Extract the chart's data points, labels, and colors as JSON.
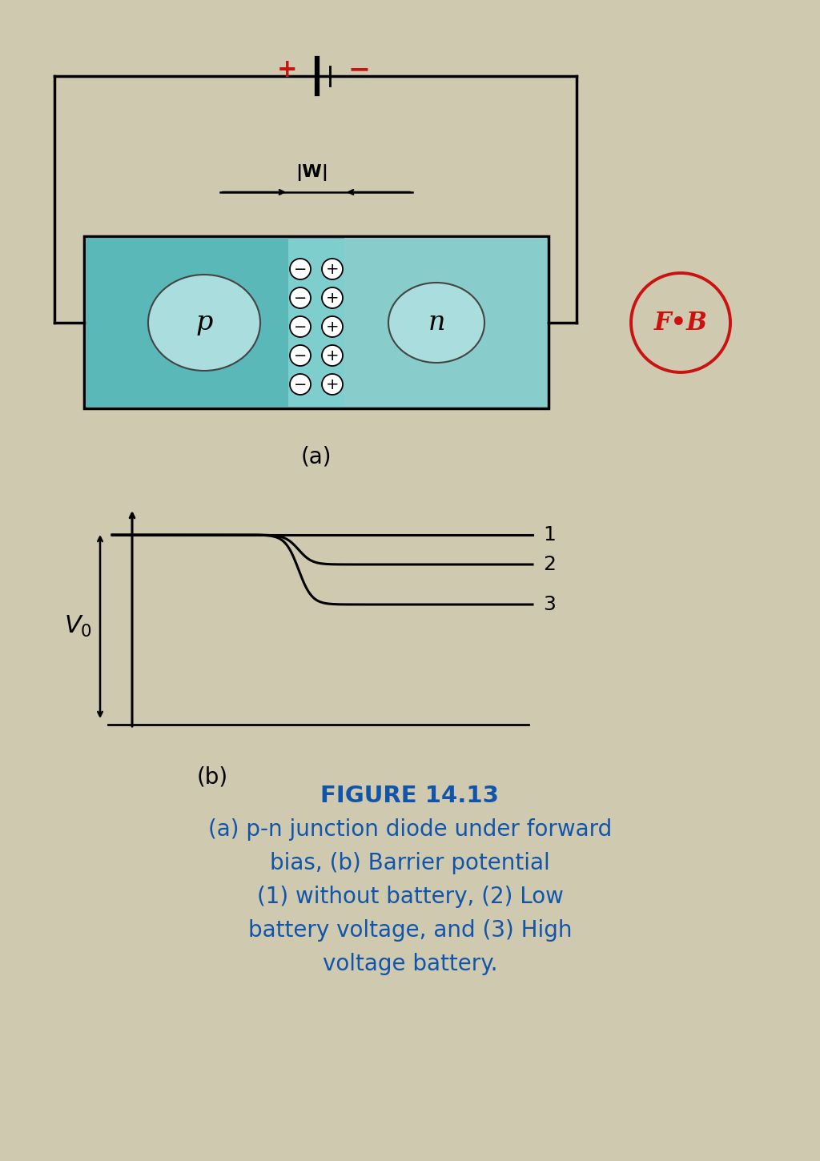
{
  "bg_color": "#cfc9b0",
  "diode_color": "#7ecece",
  "diode_p_color": "#5ab8b8",
  "diode_n_color": "#88cccc",
  "ellipse_color": "#9edada",
  "fob_color": "#cc1111",
  "caption_color": "#1155aa",
  "label_a": "(a)",
  "label_b": "(b)",
  "p_label": "p",
  "n_label": "n",
  "w_label": "W",
  "V0_label": "$V_0$",
  "FOB_label": "F•B",
  "line1_label": "1",
  "line2_label": "2",
  "line3_label": "3",
  "caption_bold": "FIGURE 14.13",
  "caption_rest_lines": [
    "(a) p-n junction diode under forward",
    "bias, (b) Barrier potential",
    "(1) without battery, (2) Low",
    "battery voltage, and (3) High",
    "voltage battery."
  ]
}
